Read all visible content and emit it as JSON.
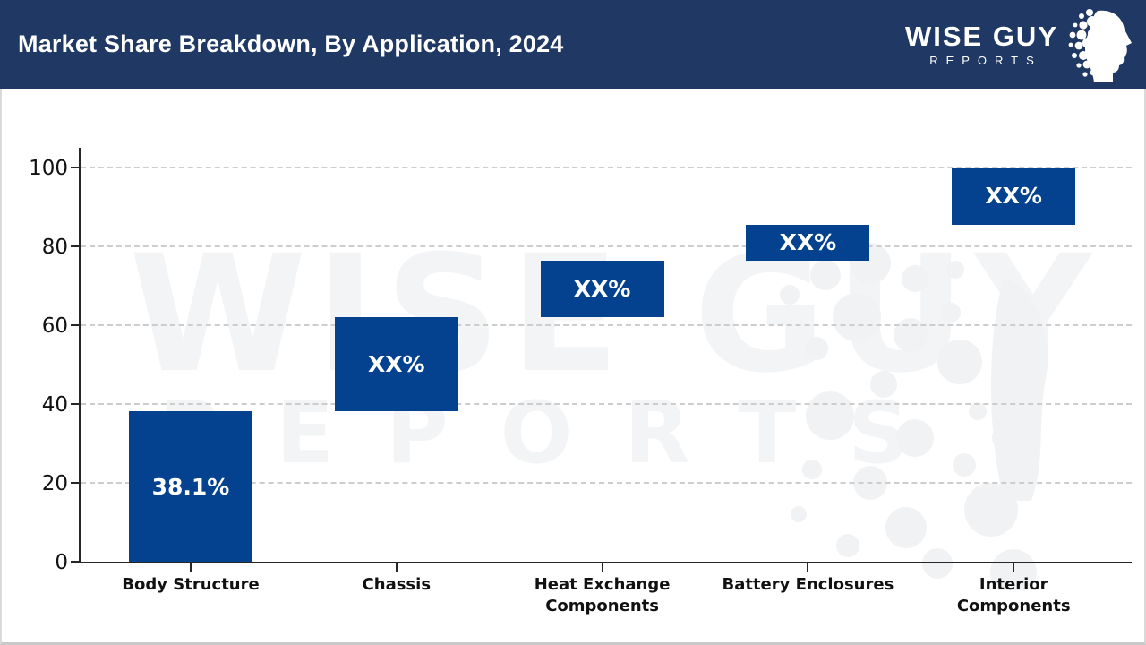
{
  "header": {
    "title": "Market Share Breakdown, By Application, 2024",
    "logo": {
      "line1": "WISE GUY",
      "line2": "REPORTS"
    }
  },
  "watermark": {
    "line1": "WISE GUY",
    "line2": "REPORTS"
  },
  "colors": {
    "header_bg": "#1f3864",
    "bar": "#04428f",
    "grid": "#cdcdcd",
    "axis": "#262626",
    "bar_label": "#ffffff",
    "watermark": "#f3f4f6"
  },
  "chart_data": {
    "type": "waterfall",
    "title": "Market Share Breakdown, By Application, 2024",
    "categories": [
      "Body Structure",
      "Chassis",
      "Heat Exchange\nComponents",
      "Battery Enclosures",
      "Interior\nComponents"
    ],
    "segments": [
      {
        "category": "Body Structure",
        "start": 0,
        "end": 38.1,
        "label": "38.1%"
      },
      {
        "category": "Chassis",
        "start": 38.1,
        "end": 62.1,
        "label": "XX%"
      },
      {
        "category": "Heat Exchange Components",
        "start": 62.1,
        "end": 76.4,
        "label": "XX%"
      },
      {
        "category": "Battery Enclosures",
        "start": 76.4,
        "end": 85.5,
        "label": "XX%"
      },
      {
        "category": "Interior Components",
        "start": 85.5,
        "end": 100,
        "label": "XX%"
      }
    ],
    "yticks": [
      0,
      20,
      40,
      60,
      80,
      100
    ],
    "ylim": [
      0,
      105
    ],
    "xlabel": "",
    "ylabel": "",
    "grid": "dashed-horizontal",
    "legend": null
  }
}
